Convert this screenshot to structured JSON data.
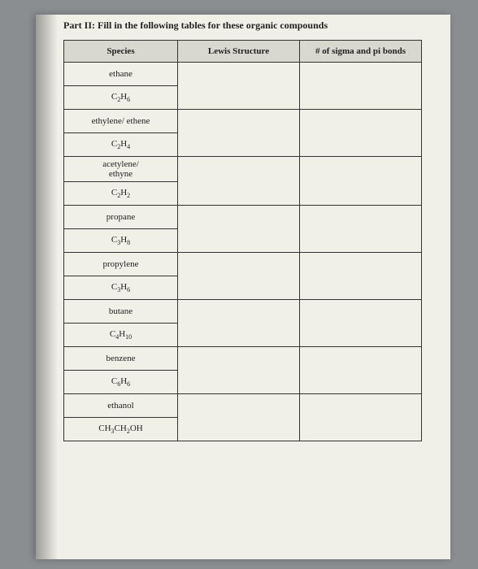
{
  "title": "Part II: Fill in the following tables for these organic compounds",
  "headers": {
    "species": "Species",
    "lewis": "Lewis Structure",
    "bonds": "# of sigma and pi bonds"
  },
  "rows": [
    {
      "name": "ethane",
      "formula_html": "C<span class='sub'>2</span>H<span class='sub'>6</span>"
    },
    {
      "name": "ethylene/ ethene",
      "formula_html": "C<span class='sub'>2</span>H<span class='sub'>4</span>"
    },
    {
      "name": "acetylene/\nethyne",
      "formula_html": "C<span class='sub'>2</span>H<span class='sub'>2</span>"
    },
    {
      "name": "propane",
      "formula_html": "C<span class='sub'>3</span>H<span class='sub'>8</span>"
    },
    {
      "name": "propylene",
      "formula_html": "C<span class='sub'>3</span>H<span class='sub'>6</span>"
    },
    {
      "name": "butane",
      "formula_html": "C<span class='sub'>4</span>H<span class='sub'>10</span>"
    },
    {
      "name": "benzene",
      "formula_html": "C<span class='sub'>6</span>H<span class='sub'>6</span>"
    },
    {
      "name": "ethanol",
      "formula_html": "CH<span class='sub'>3</span>CH<span class='sub'>2</span>OH"
    }
  ],
  "colors": {
    "page_bg": "#f0efe8",
    "outer_bg": "#8a8e91",
    "header_bg": "#d9d8d0",
    "border": "#333333",
    "text": "#222222"
  }
}
